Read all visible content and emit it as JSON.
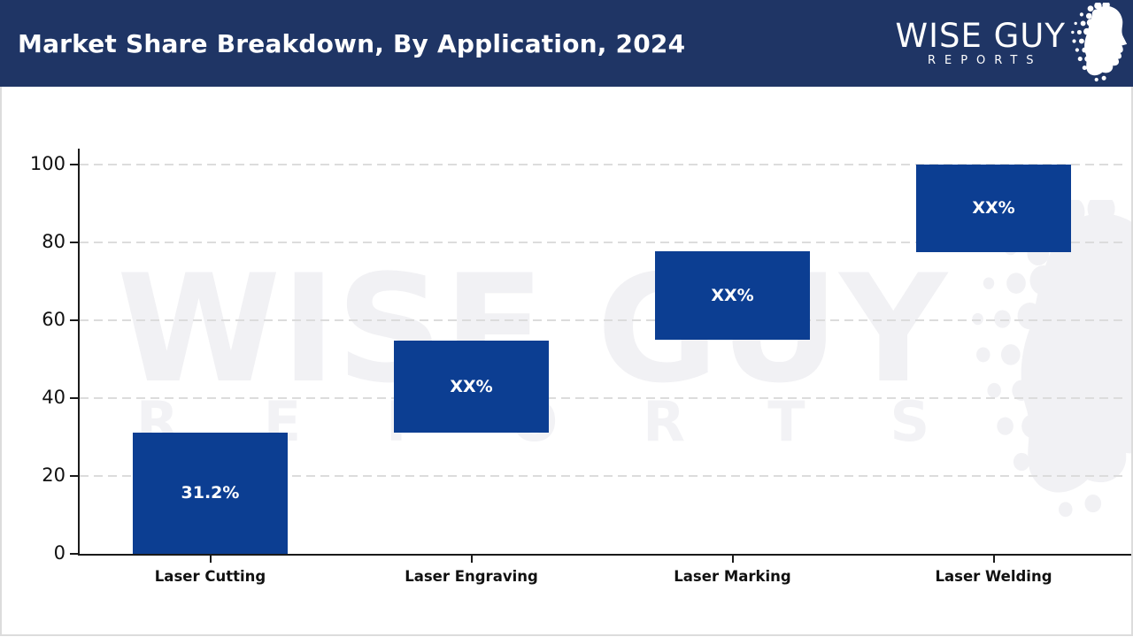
{
  "header": {
    "title": "Market Share Breakdown, By Application, 2024",
    "logo": {
      "name": "WISE GUY",
      "sub": "REPORTS"
    }
  },
  "watermark": {
    "line1": "WISE GUY",
    "line2": "REPORTS"
  },
  "chart_data": {
    "type": "bar",
    "subtype": "waterfall",
    "title": "Market Share Breakdown, By Application, 2024",
    "xlabel": "",
    "ylabel": "",
    "categories": [
      "Laser Cutting",
      "Laser Engraving",
      "Laser Marking",
      "Laser Welding"
    ],
    "segments": [
      {
        "category": "Laser Cutting",
        "start": 0,
        "end": 31.2,
        "label": "31.2%"
      },
      {
        "category": "Laser Engraving",
        "start": 31.2,
        "end": 54.7,
        "label": "XX%"
      },
      {
        "category": "Laser Marking",
        "start": 55.0,
        "end": 77.7,
        "label": "XX%"
      },
      {
        "category": "Laser Welding",
        "start": 77.5,
        "end": 100,
        "label": "XX%"
      }
    ],
    "yticks": [
      0,
      20,
      40,
      60,
      80,
      100
    ],
    "ylim": [
      0,
      104
    ],
    "grid": "horizontal-dashed",
    "legend": "none",
    "bar_color": "#0c3e92",
    "bar_label_color": "#ffffff"
  },
  "colors": {
    "header_bg": "#1f3565",
    "bar": "#0c3e92",
    "grid": "#dcdcdc",
    "axis": "#1a1a1a",
    "watermark": "#f1f1f4",
    "frame": "#dcdcdc"
  }
}
